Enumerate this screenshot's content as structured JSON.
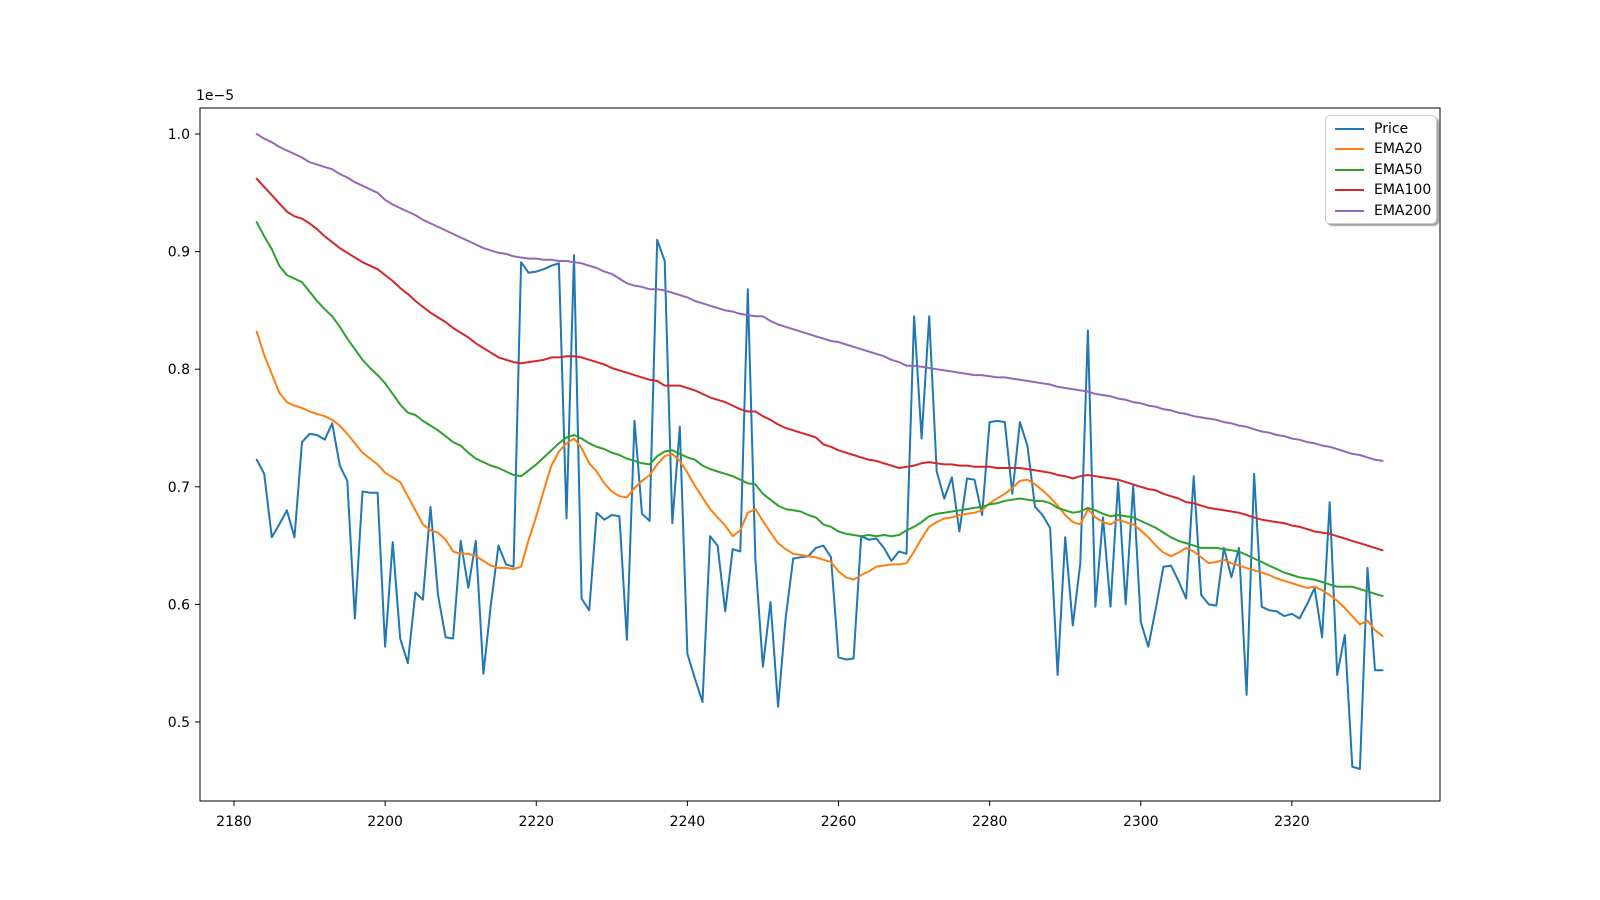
{
  "figure": {
    "offset_text": "1e−5",
    "background": "#ffffff"
  },
  "legend": {
    "position": "upper right",
    "items": [
      {
        "label": "Price",
        "color": "#1f77b4"
      },
      {
        "label": "EMA20",
        "color": "#ff7f0e"
      },
      {
        "label": "EMA50",
        "color": "#2ca02c"
      },
      {
        "label": "EMA100",
        "color": "#d62728"
      },
      {
        "label": "EMA200",
        "color": "#9467bd"
      }
    ]
  },
  "chart_data": {
    "type": "line",
    "title": "",
    "xlabel": "",
    "ylabel": "",
    "y_unit_offset": "1e−5",
    "note": "y values are in units of 1e-5 as shown by the axis offset label",
    "grid": false,
    "legend_position": "upper right",
    "xlim": [
      2175.5,
      2339.6
    ],
    "ylim": [
      0.4328,
      1.0221
    ],
    "x_ticks": [
      2180,
      2200,
      2220,
      2240,
      2260,
      2280,
      2300,
      2320
    ],
    "y_ticks": [
      0.5,
      0.6,
      0.7,
      0.8,
      0.9,
      1.0
    ],
    "x": [
      2183,
      2184,
      2185,
      2186,
      2187,
      2188,
      2189,
      2190,
      2191,
      2192,
      2193,
      2194,
      2195,
      2196,
      2197,
      2198,
      2199,
      2200,
      2201,
      2202,
      2203,
      2204,
      2205,
      2206,
      2207,
      2208,
      2209,
      2210,
      2211,
      2212,
      2213,
      2214,
      2215,
      2216,
      2217,
      2218,
      2219,
      2220,
      2221,
      2222,
      2223,
      2224,
      2225,
      2226,
      2227,
      2228,
      2229,
      2230,
      2231,
      2232,
      2233,
      2234,
      2235,
      2236,
      2237,
      2238,
      2239,
      2240,
      2241,
      2242,
      2243,
      2244,
      2245,
      2246,
      2247,
      2248,
      2249,
      2250,
      2251,
      2252,
      2253,
      2254,
      2255,
      2256,
      2257,
      2258,
      2259,
      2260,
      2261,
      2262,
      2263,
      2264,
      2265,
      2266,
      2267,
      2268,
      2269,
      2270,
      2271,
      2272,
      2273,
      2274,
      2275,
      2276,
      2277,
      2278,
      2279,
      2280,
      2281,
      2282,
      2283,
      2284,
      2285,
      2286,
      2287,
      2288,
      2289,
      2290,
      2291,
      2292,
      2293,
      2294,
      2295,
      2296,
      2297,
      2298,
      2299,
      2300,
      2301,
      2302,
      2303,
      2304,
      2305,
      2306,
      2307,
      2308,
      2309,
      2310,
      2311,
      2312,
      2313,
      2314,
      2315,
      2316,
      2317,
      2318,
      2319,
      2320,
      2321,
      2322,
      2323,
      2324,
      2325,
      2326,
      2327,
      2328,
      2329,
      2330,
      2331,
      2332
    ],
    "series": [
      {
        "name": "Price",
        "color": "#1f77b4",
        "values": [
          0.723,
          0.711,
          0.657,
          0.668,
          0.68,
          0.657,
          0.738,
          0.745,
          0.744,
          0.74,
          0.754,
          0.718,
          0.705,
          0.588,
          0.696,
          0.695,
          0.695,
          0.564,
          0.653,
          0.571,
          0.55,
          0.61,
          0.604,
          0.683,
          0.608,
          0.572,
          0.571,
          0.654,
          0.614,
          0.654,
          0.541,
          0.6,
          0.65,
          0.634,
          0.632,
          0.891,
          0.882,
          0.883,
          0.885,
          0.888,
          0.89,
          0.673,
          0.897,
          0.605,
          0.595,
          0.678,
          0.672,
          0.676,
          0.675,
          0.57,
          0.756,
          0.677,
          0.671,
          0.91,
          0.892,
          0.669,
          0.751,
          0.558,
          0.537,
          0.517,
          0.658,
          0.65,
          0.594,
          0.647,
          0.645,
          0.868,
          0.638,
          0.547,
          0.602,
          0.513,
          0.588,
          0.639,
          0.64,
          0.641,
          0.648,
          0.65,
          0.64,
          0.555,
          0.553,
          0.554,
          0.658,
          0.655,
          0.656,
          0.648,
          0.637,
          0.645,
          0.643,
          0.845,
          0.741,
          0.845,
          0.713,
          0.69,
          0.708,
          0.662,
          0.707,
          0.706,
          0.676,
          0.755,
          0.756,
          0.755,
          0.694,
          0.755,
          0.735,
          0.683,
          0.676,
          0.665,
          0.54,
          0.657,
          0.582,
          0.635,
          0.833,
          0.598,
          0.674,
          0.598,
          0.704,
          0.6,
          0.701,
          0.585,
          0.564,
          0.597,
          0.632,
          0.633,
          0.62,
          0.605,
          0.709,
          0.608,
          0.6,
          0.599,
          0.648,
          0.623,
          0.648,
          0.523,
          0.711,
          0.598,
          0.595,
          0.594,
          0.59,
          0.592,
          0.588,
          0.6,
          0.614,
          0.572,
          0.687,
          0.54,
          0.574,
          0.462,
          0.46,
          0.631,
          0.544,
          0.544
        ]
      },
      {
        "name": "EMA20",
        "color": "#ff7f0e",
        "values": [
          0.832,
          0.812,
          0.796,
          0.78,
          0.772,
          0.769,
          0.767,
          0.764,
          0.762,
          0.76,
          0.757,
          0.752,
          0.745,
          0.737,
          0.729,
          0.724,
          0.719,
          0.712,
          0.708,
          0.704,
          0.692,
          0.68,
          0.668,
          0.663,
          0.661,
          0.655,
          0.645,
          0.643,
          0.643,
          0.641,
          0.637,
          0.633,
          0.631,
          0.631,
          0.63,
          0.632,
          0.655,
          0.675,
          0.697,
          0.718,
          0.73,
          0.737,
          0.741,
          0.733,
          0.72,
          0.713,
          0.703,
          0.696,
          0.692,
          0.691,
          0.699,
          0.705,
          0.71,
          0.719,
          0.726,
          0.728,
          0.722,
          0.712,
          0.701,
          0.691,
          0.681,
          0.674,
          0.667,
          0.658,
          0.663,
          0.678,
          0.681,
          0.671,
          0.661,
          0.652,
          0.647,
          0.643,
          0.642,
          0.641,
          0.64,
          0.638,
          0.636,
          0.628,
          0.623,
          0.621,
          0.625,
          0.628,
          0.632,
          0.633,
          0.634,
          0.634,
          0.635,
          0.645,
          0.656,
          0.666,
          0.67,
          0.673,
          0.674,
          0.676,
          0.677,
          0.678,
          0.68,
          0.686,
          0.69,
          0.694,
          0.699,
          0.705,
          0.706,
          0.702,
          0.697,
          0.691,
          0.684,
          0.676,
          0.67,
          0.668,
          0.681,
          0.674,
          0.67,
          0.668,
          0.672,
          0.67,
          0.668,
          0.663,
          0.657,
          0.65,
          0.644,
          0.641,
          0.644,
          0.648,
          0.645,
          0.64,
          0.635,
          0.636,
          0.638,
          0.635,
          0.633,
          0.631,
          0.629,
          0.627,
          0.625,
          0.622,
          0.62,
          0.618,
          0.616,
          0.614,
          0.615,
          0.612,
          0.608,
          0.603,
          0.597,
          0.59,
          0.583,
          0.586,
          0.578,
          0.573
        ]
      },
      {
        "name": "EMA50",
        "color": "#2ca02c",
        "values": [
          0.925,
          0.913,
          0.902,
          0.888,
          0.88,
          0.877,
          0.874,
          0.866,
          0.858,
          0.851,
          0.845,
          0.836,
          0.826,
          0.817,
          0.808,
          0.801,
          0.795,
          0.788,
          0.779,
          0.77,
          0.763,
          0.761,
          0.756,
          0.752,
          0.748,
          0.743,
          0.738,
          0.735,
          0.729,
          0.724,
          0.721,
          0.718,
          0.716,
          0.713,
          0.71,
          0.709,
          0.714,
          0.719,
          0.725,
          0.731,
          0.737,
          0.742,
          0.744,
          0.741,
          0.737,
          0.734,
          0.732,
          0.729,
          0.727,
          0.724,
          0.722,
          0.72,
          0.719,
          0.726,
          0.73,
          0.731,
          0.728,
          0.725,
          0.723,
          0.718,
          0.715,
          0.713,
          0.711,
          0.709,
          0.706,
          0.703,
          0.702,
          0.694,
          0.689,
          0.684,
          0.681,
          0.68,
          0.679,
          0.676,
          0.674,
          0.668,
          0.666,
          0.662,
          0.66,
          0.659,
          0.658,
          0.659,
          0.658,
          0.659,
          0.658,
          0.659,
          0.663,
          0.666,
          0.67,
          0.675,
          0.677,
          0.678,
          0.679,
          0.68,
          0.681,
          0.682,
          0.683,
          0.685,
          0.686,
          0.688,
          0.689,
          0.69,
          0.689,
          0.688,
          0.688,
          0.686,
          0.682,
          0.68,
          0.678,
          0.679,
          0.682,
          0.68,
          0.677,
          0.675,
          0.676,
          0.675,
          0.674,
          0.671,
          0.668,
          0.665,
          0.661,
          0.657,
          0.654,
          0.652,
          0.65,
          0.648,
          0.648,
          0.648,
          0.647,
          0.646,
          0.645,
          0.642,
          0.639,
          0.636,
          0.633,
          0.63,
          0.627,
          0.625,
          0.623,
          0.622,
          0.621,
          0.619,
          0.617,
          0.615,
          0.615,
          0.615,
          0.613,
          0.611,
          0.609,
          0.607
        ]
      },
      {
        "name": "EMA100",
        "color": "#d62728",
        "values": [
          0.962,
          0.955,
          0.948,
          0.941,
          0.934,
          0.93,
          0.928,
          0.924,
          0.919,
          0.913,
          0.908,
          0.903,
          0.899,
          0.895,
          0.891,
          0.888,
          0.885,
          0.88,
          0.875,
          0.869,
          0.864,
          0.858,
          0.853,
          0.848,
          0.844,
          0.84,
          0.835,
          0.831,
          0.827,
          0.822,
          0.818,
          0.814,
          0.81,
          0.808,
          0.806,
          0.805,
          0.806,
          0.807,
          0.808,
          0.81,
          0.81,
          0.811,
          0.811,
          0.81,
          0.808,
          0.806,
          0.804,
          0.801,
          0.799,
          0.797,
          0.795,
          0.793,
          0.791,
          0.79,
          0.786,
          0.786,
          0.786,
          0.784,
          0.782,
          0.779,
          0.776,
          0.774,
          0.772,
          0.769,
          0.766,
          0.764,
          0.764,
          0.76,
          0.757,
          0.753,
          0.75,
          0.748,
          0.746,
          0.744,
          0.742,
          0.736,
          0.734,
          0.731,
          0.729,
          0.727,
          0.725,
          0.723,
          0.722,
          0.72,
          0.718,
          0.716,
          0.717,
          0.718,
          0.72,
          0.721,
          0.72,
          0.719,
          0.719,
          0.718,
          0.718,
          0.717,
          0.717,
          0.717,
          0.716,
          0.716,
          0.716,
          0.716,
          0.715,
          0.714,
          0.713,
          0.712,
          0.71,
          0.709,
          0.707,
          0.709,
          0.71,
          0.709,
          0.708,
          0.707,
          0.706,
          0.704,
          0.702,
          0.7,
          0.698,
          0.697,
          0.694,
          0.692,
          0.69,
          0.687,
          0.686,
          0.684,
          0.682,
          0.681,
          0.68,
          0.679,
          0.678,
          0.676,
          0.674,
          0.672,
          0.671,
          0.67,
          0.669,
          0.667,
          0.666,
          0.664,
          0.662,
          0.661,
          0.66,
          0.658,
          0.656,
          0.654,
          0.652,
          0.65,
          0.648,
          0.646
        ]
      },
      {
        "name": "EMA200",
        "color": "#9467bd",
        "values": [
          1.0,
          0.996,
          0.993,
          0.989,
          0.986,
          0.983,
          0.98,
          0.976,
          0.974,
          0.972,
          0.97,
          0.966,
          0.963,
          0.959,
          0.956,
          0.953,
          0.95,
          0.944,
          0.94,
          0.937,
          0.934,
          0.931,
          0.927,
          0.924,
          0.921,
          0.918,
          0.915,
          0.912,
          0.909,
          0.906,
          0.903,
          0.901,
          0.899,
          0.898,
          0.896,
          0.895,
          0.894,
          0.894,
          0.893,
          0.893,
          0.892,
          0.892,
          0.891,
          0.89,
          0.888,
          0.886,
          0.883,
          0.881,
          0.877,
          0.873,
          0.871,
          0.87,
          0.868,
          0.868,
          0.867,
          0.865,
          0.863,
          0.861,
          0.858,
          0.856,
          0.854,
          0.852,
          0.85,
          0.849,
          0.847,
          0.846,
          0.845,
          0.845,
          0.841,
          0.838,
          0.836,
          0.834,
          0.832,
          0.83,
          0.828,
          0.826,
          0.824,
          0.823,
          0.821,
          0.819,
          0.817,
          0.815,
          0.813,
          0.811,
          0.808,
          0.806,
          0.803,
          0.803,
          0.802,
          0.801,
          0.8,
          0.799,
          0.798,
          0.797,
          0.796,
          0.795,
          0.795,
          0.794,
          0.793,
          0.793,
          0.792,
          0.791,
          0.79,
          0.789,
          0.788,
          0.787,
          0.785,
          0.784,
          0.783,
          0.782,
          0.781,
          0.779,
          0.778,
          0.777,
          0.775,
          0.774,
          0.772,
          0.771,
          0.769,
          0.768,
          0.766,
          0.765,
          0.763,
          0.762,
          0.76,
          0.759,
          0.758,
          0.757,
          0.755,
          0.754,
          0.752,
          0.751,
          0.749,
          0.747,
          0.746,
          0.744,
          0.743,
          0.741,
          0.74,
          0.738,
          0.737,
          0.735,
          0.734,
          0.732,
          0.73,
          0.728,
          0.727,
          0.725,
          0.723,
          0.722
        ]
      }
    ]
  }
}
